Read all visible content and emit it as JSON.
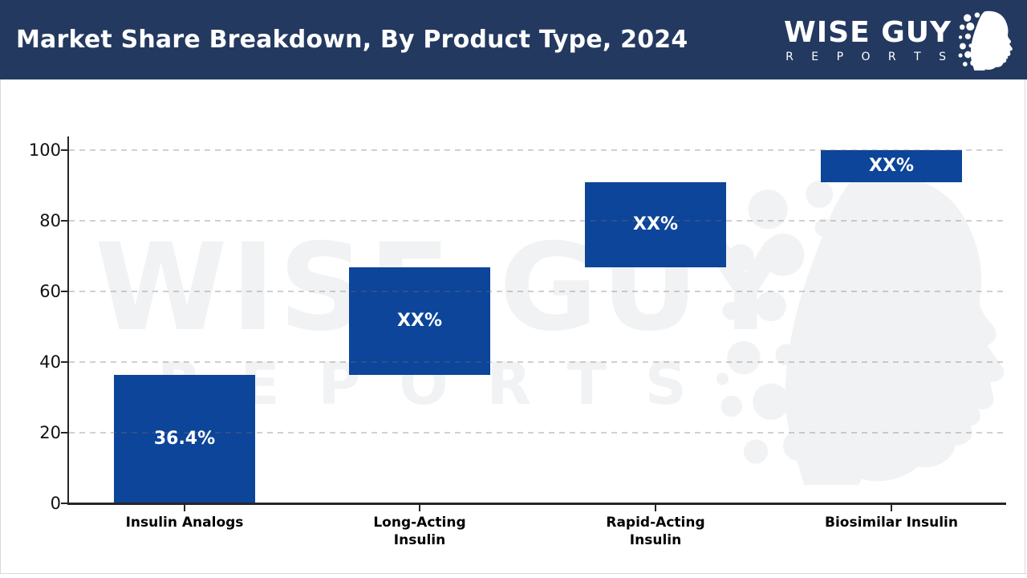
{
  "header": {
    "title": "Market Share Breakdown, By Product Type, 2024",
    "logo": {
      "line1": "WISE GUY",
      "line2": "R E P O R T S"
    }
  },
  "watermark": {
    "line1": "WISE GUY",
    "line2": "REPORTS"
  },
  "chart_data": {
    "type": "bar",
    "subtype": "waterfall",
    "title": "Market Share Breakdown, By Product Type, 2024",
    "categories": [
      "Insulin Analogs",
      "Long-Acting\nInsulin",
      "Rapid-Acting\nInsulin",
      "Biosimilar Insulin"
    ],
    "segments": [
      {
        "category": "Insulin Analogs",
        "start": 0,
        "end": 36.4,
        "label": "36.4%"
      },
      {
        "category": "Long-Acting Insulin",
        "start": 36.4,
        "end": 66.8,
        "label": "XX%"
      },
      {
        "category": "Rapid-Acting Insulin",
        "start": 66.8,
        "end": 91.0,
        "label": "XX%"
      },
      {
        "category": "Biosimilar Insulin",
        "start": 91.0,
        "end": 100.0,
        "label": "XX%"
      }
    ],
    "ylim": [
      0,
      100
    ],
    "yticks": [
      0,
      20,
      40,
      60,
      80,
      100
    ],
    "xlabel": "",
    "ylabel": "",
    "grid": "horizontal-dashed",
    "legend": "none",
    "bar_color": "#0c4599",
    "label_color": "#ffffff"
  },
  "colors": {
    "header_bg": "#233960",
    "bar": "#0c4599",
    "axis": "#262626",
    "grid_dash": "rgba(110,110,110,0.32)",
    "watermark": "#f1f2f4",
    "panel_edge": "#d9d9d9"
  }
}
